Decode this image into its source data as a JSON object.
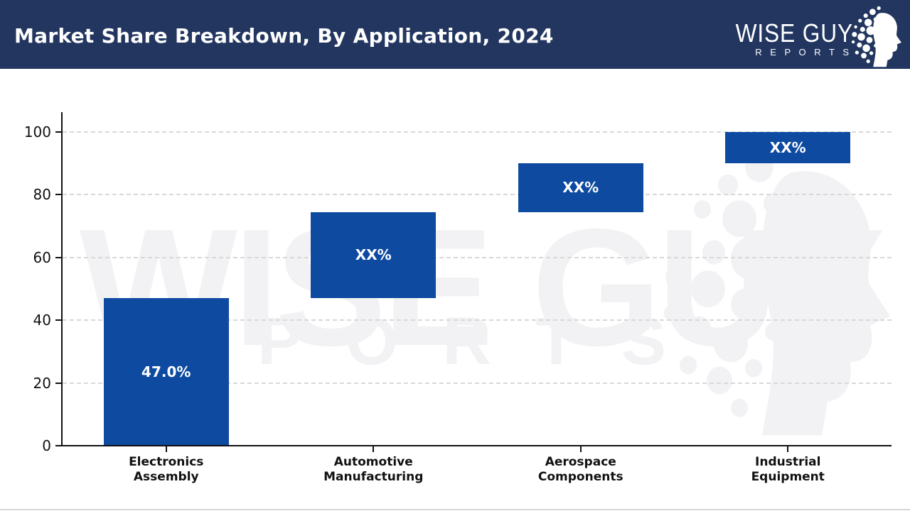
{
  "header": {
    "title": "Market Share Breakdown, By Application, 2024",
    "logo": {
      "wordmark": "WISE GUY",
      "sub": "R E P O R T S",
      "head_icon": "dotted-head-profile"
    }
  },
  "watermark": {
    "wordmark": "WISE GUY",
    "sub": "P O R T S",
    "head_icon": "dotted-head-profile"
  },
  "chart_data": {
    "type": "bar",
    "variant": "waterfall",
    "title": "Market Share Breakdown, By Application, 2024",
    "categories": [
      "Electronics Assembly",
      "Automotive Manufacturing",
      "Aerospace Components",
      "Industrial Equipment"
    ],
    "segments": [
      {
        "category": "Electronics Assembly",
        "start": 0,
        "end": 47.0,
        "value": 47.0,
        "label": "47.0%"
      },
      {
        "category": "Automotive Manufacturing",
        "start": 47.0,
        "end": 74.5,
        "value": 27.5,
        "label": "XX%"
      },
      {
        "category": "Aerospace Components",
        "start": 74.5,
        "end": 90.0,
        "value": 15.5,
        "label": "XX%"
      },
      {
        "category": "Industrial Equipment",
        "start": 90.0,
        "end": 100.0,
        "value": 10.0,
        "label": "XX%"
      }
    ],
    "yticks": [
      0,
      20,
      40,
      60,
      80,
      100
    ],
    "ylim": [
      0,
      106
    ],
    "xlabel": "",
    "ylabel": "",
    "grid": "horizontal-dashed",
    "legend": "none",
    "colors": {
      "bar": "#0d4aa0",
      "bar_label": "#ffffff",
      "grid": "#d8d8d8",
      "axis": "#111111",
      "header_bg": "#223660",
      "watermark": "#f2f2f4"
    }
  }
}
